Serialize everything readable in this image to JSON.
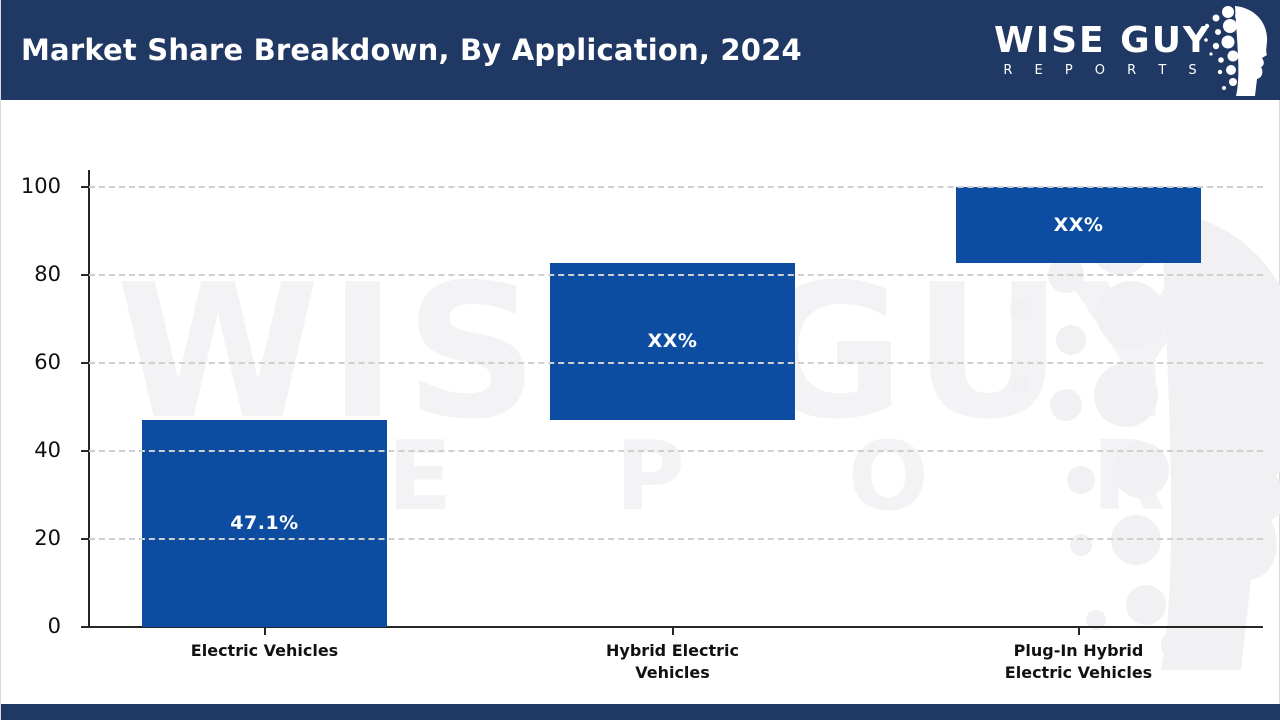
{
  "header": {
    "title": "Market Share Breakdown, By Application, 2024",
    "logo": {
      "line1": "WISE GUY",
      "line2": "R E P O R T S"
    }
  },
  "watermark": {
    "line1": "WISE GUY",
    "line2": "R E P O R T S"
  },
  "chart_data": {
    "type": "bar",
    "subtype": "waterfall",
    "title": "Market Share Breakdown, By Application, 2024",
    "categories": [
      "Electric Vehicles",
      "Hybrid Electric\nVehicles",
      "Plug-In Hybrid\nElectric Vehicles"
    ],
    "segments": [
      {
        "category": "Electric Vehicles",
        "start": 0,
        "end": 47.1,
        "label": "47.1%"
      },
      {
        "category": "Hybrid Electric Vehicles",
        "start": 47.1,
        "end": 82.7,
        "label": "XX%"
      },
      {
        "category": "Plug-In Hybrid Electric Vehicles",
        "start": 82.7,
        "end": 100,
        "label": "XX%"
      }
    ],
    "xlabel": "",
    "ylabel": "",
    "ylim": [
      0,
      100
    ],
    "yticks": [
      0,
      20,
      40,
      60,
      80,
      100
    ],
    "grid": "dashed-horizontal",
    "legend": "none",
    "bar_color": "#0d4da1",
    "label_color": "#ffffff"
  },
  "colors": {
    "header_bg": "#1f3864",
    "footer_bg": "#1f3864",
    "bar": "#0d4da1",
    "gridline": "#cfcfcf",
    "axis": "#262626",
    "watermark": "#f3f3f5"
  }
}
